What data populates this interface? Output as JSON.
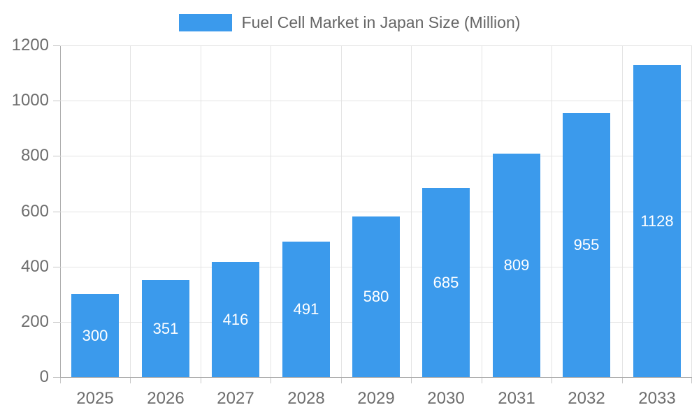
{
  "chart_data": {
    "type": "bar",
    "title": "Fuel Cell Market in Japan Size (Million)",
    "legend": {
      "position": "top",
      "items": [
        {
          "label": "Fuel Cell Market in Japan Size (Million)",
          "color": "#3B9AEC"
        }
      ]
    },
    "categories": [
      "2025",
      "2026",
      "2027",
      "2028",
      "2029",
      "2030",
      "2031",
      "2032",
      "2033"
    ],
    "series": [
      {
        "name": "Fuel Cell Market in Japan Size (Million)",
        "values": [
          300,
          351,
          416,
          491,
          580,
          685,
          809,
          955,
          1128
        ]
      }
    ],
    "value_labels": {
      "position": "inside-center",
      "color": "#ffffff"
    },
    "xlabel": "",
    "ylabel": "",
    "ylim": [
      0,
      1200
    ],
    "yticks": [
      0,
      200,
      400,
      600,
      800,
      1000,
      1200
    ],
    "grid": true,
    "colors": {
      "bar": "#3B9AEC",
      "gridline": "#E3E3E3",
      "axis": "#ABABAB",
      "tick": "#C6C6C6",
      "tick_label": "#6e6e6e",
      "legend_text": "#666666",
      "background": "#ffffff"
    }
  }
}
